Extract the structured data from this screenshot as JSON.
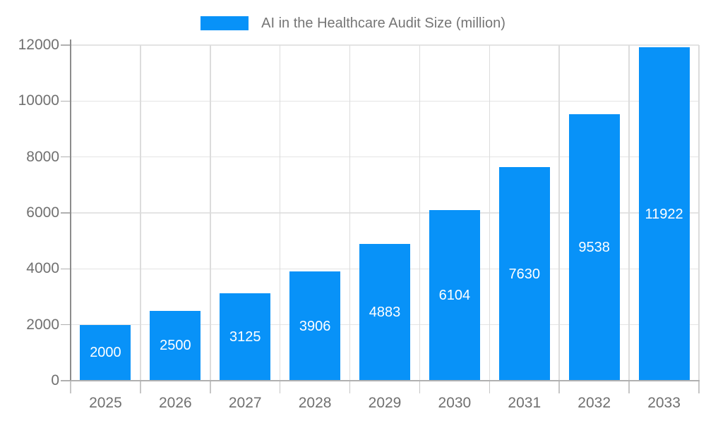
{
  "chart_data": {
    "type": "bar",
    "title": "AI in the Healthcare Audit Size (million)",
    "categories": [
      "2025",
      "2026",
      "2027",
      "2028",
      "2029",
      "2030",
      "2031",
      "2032",
      "2033"
    ],
    "values": [
      2000,
      2500,
      3125,
      3906,
      4883,
      6104,
      7630,
      9538,
      11922
    ],
    "xlabel": "",
    "ylabel": "",
    "ylim": [
      0,
      12000
    ],
    "yticks": [
      0,
      2000,
      4000,
      6000,
      8000,
      10000,
      12000
    ],
    "grid": true,
    "legend_position": "top-center",
    "bar_color": "#0892f8",
    "bar_label_color": "#ffffff",
    "axis_label_color": "#707070",
    "legend_text_color": "#757575"
  }
}
